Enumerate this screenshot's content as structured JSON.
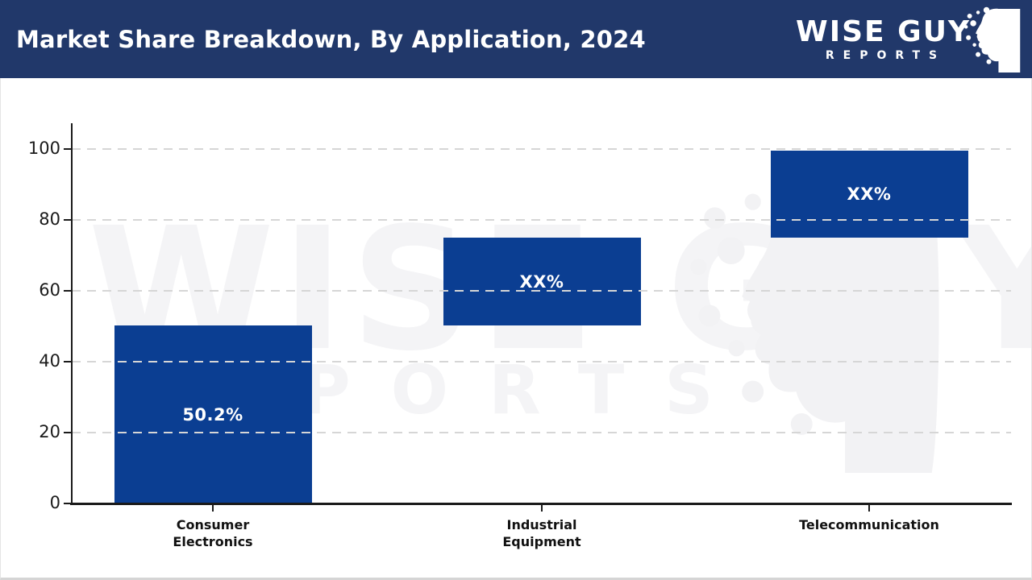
{
  "header": {
    "title": "Market Share Breakdown, By Application, 2024",
    "logo": {
      "line1": "WISE GUY",
      "line2": "REPORTS"
    }
  },
  "watermark": {
    "line1": "WISE GUY",
    "line2": "REPORTS"
  },
  "chart_data": {
    "type": "bar",
    "subtype": "waterfall",
    "title": "Market Share Breakdown, By Application, 2024",
    "categories": [
      {
        "lines": [
          "Consumer",
          "Electronics"
        ]
      },
      {
        "lines": [
          "Industrial",
          "Equipment"
        ]
      },
      {
        "lines": [
          "Telecommunication"
        ]
      }
    ],
    "segments": [
      {
        "start": 0,
        "end": 50.2,
        "label": "50.2%"
      },
      {
        "start": 50.2,
        "end": 75,
        "label": "XX%"
      },
      {
        "start": 75,
        "end": 99.5,
        "label": "XX%"
      }
    ],
    "yticks": [
      0,
      20,
      40,
      60,
      80,
      100
    ],
    "ylim": [
      0,
      107
    ],
    "grid": "dashed-horizontal",
    "legend": "none",
    "bar_color": "#0b3e92",
    "bar_label_color": "#ffffff",
    "axis_color": "#1a1a1a",
    "grid_color": "#d6d6d6"
  },
  "colors": {
    "header_bg": "#21386a",
    "bar": "#0b3e92",
    "watermark": "#f4f4f6",
    "grid": "#d6d6d6",
    "axis": "#1a1a1a",
    "bottom_rule": "#d5d5d5"
  }
}
